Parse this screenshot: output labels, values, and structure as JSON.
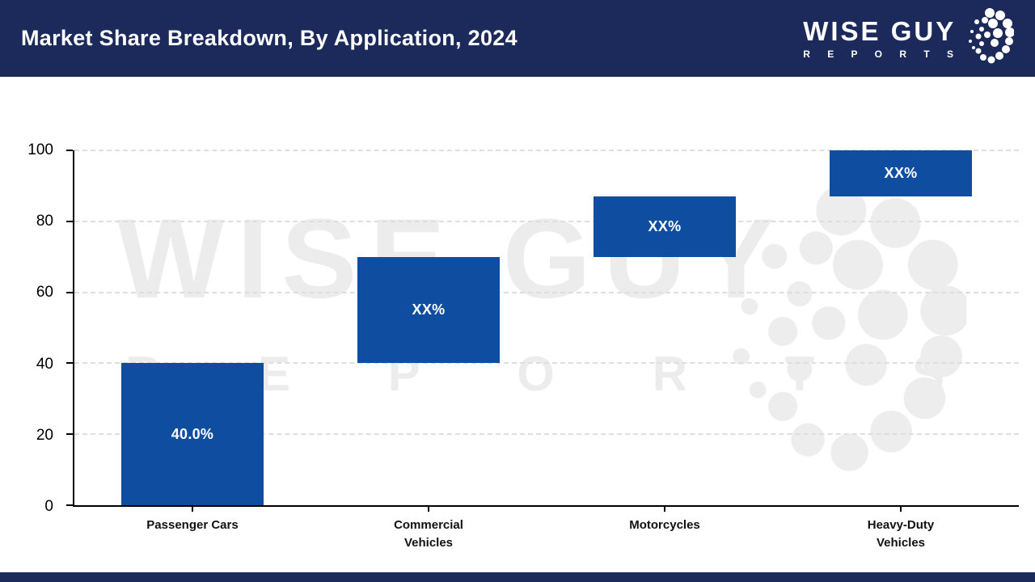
{
  "header": {
    "title": "Market Share Breakdown, By Application, 2024",
    "logo": {
      "name": "WISE GUY",
      "tagline": "R E P O R T S"
    }
  },
  "watermark": {
    "line1": "WISE GUY",
    "line2": "R E P O R T S"
  },
  "colors": {
    "header_bg": "#1b2a5a",
    "bar": "#0e4d9f",
    "bar_label": "#ffffff",
    "gridline": "#dedede",
    "watermark": "#ececec"
  },
  "chart_data": {
    "type": "bar",
    "subtype": "floating-waterfall",
    "title": "Market Share Breakdown, By Application, 2024",
    "xlabel": "",
    "ylabel": "",
    "ylim": [
      0,
      100
    ],
    "yticks": [
      0,
      20,
      40,
      60,
      80,
      100
    ],
    "grid": "horizontal-dashed",
    "legend": "none",
    "bar_color": "#0e4d9f",
    "categories": [
      "Passenger Cars",
      "Commercial Vehicles",
      "Motorcycles",
      "Heavy-Duty Vehicles"
    ],
    "segments": [
      {
        "category": "Passenger Cars",
        "category_lines": [
          "Passenger Cars"
        ],
        "start": 0,
        "end": 40,
        "label": "40.0%"
      },
      {
        "category": "Commercial Vehicles",
        "category_lines": [
          "Commercial",
          "Vehicles"
        ],
        "start": 40,
        "end": 70,
        "label": "XX%"
      },
      {
        "category": "Motorcycles",
        "category_lines": [
          "Motorcycles"
        ],
        "start": 70,
        "end": 87,
        "label": "XX%"
      },
      {
        "category": "Heavy-Duty Vehicles",
        "category_lines": [
          "Heavy-Duty",
          "Vehicles"
        ],
        "start": 87,
        "end": 100,
        "label": "XX%"
      }
    ]
  }
}
